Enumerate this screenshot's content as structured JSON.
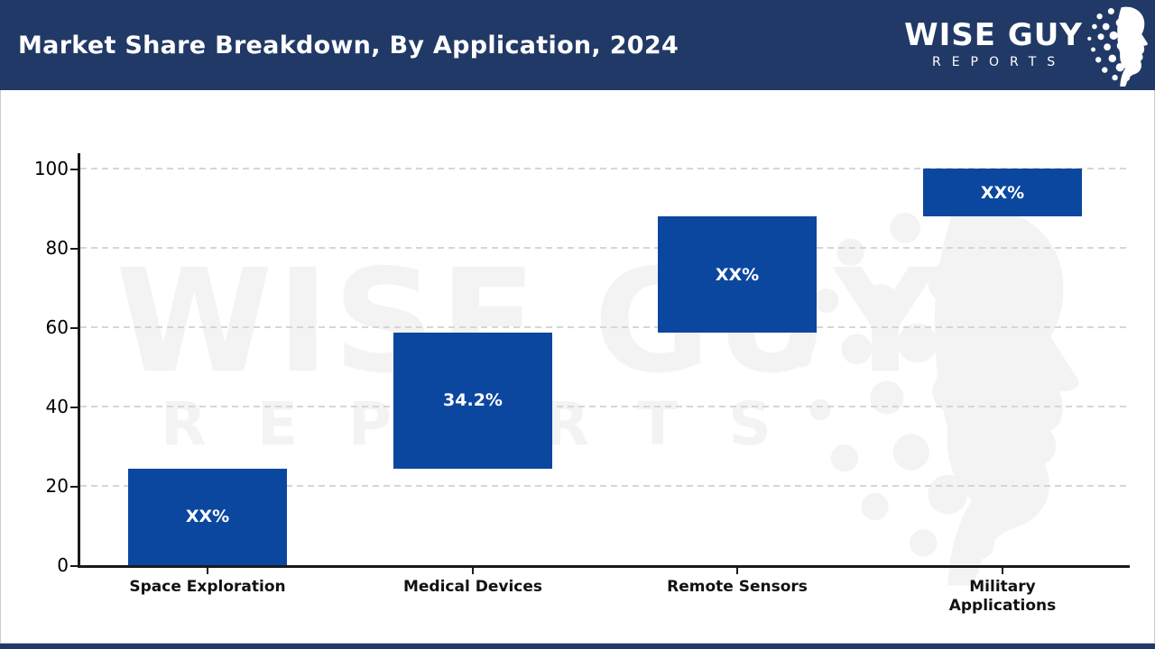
{
  "header": {
    "title": "Market Share Breakdown, By Application, 2024"
  },
  "logo": {
    "name": "WISE GUY",
    "subtitle": "REPORTS"
  },
  "watermark": {
    "word": "WISE GUY",
    "subtitle": "REPORTS"
  },
  "colors": {
    "header_bg": "#213966",
    "footer_bg": "#213966",
    "bar": "#0b479f",
    "bar_label": "#ffffff",
    "grid": "#d6d6d6",
    "axis": "#1a1a1a",
    "watermark": "#f3f3f3",
    "title_text": "#ffffff"
  },
  "chart_data": {
    "type": "bar",
    "subtype": "waterfall",
    "title": "Market Share Breakdown, By Application, 2024",
    "xlabel": "",
    "ylabel": "",
    "ylim": [
      0,
      100
    ],
    "yticks": [
      0,
      20,
      40,
      60,
      80,
      100
    ],
    "grid": "dashed-horizontal",
    "legend": "none",
    "categories": [
      "Space Exploration",
      "Medical Devices",
      "Remote Sensors",
      "Military\nApplications"
    ],
    "values": [
      24.4,
      34.2,
      29.3,
      12.1
    ],
    "bar_labels": [
      "XX%",
      "34.2%",
      "XX%",
      "XX%"
    ],
    "segments": [
      {
        "category": "Space Exploration",
        "start": 0,
        "end": 24.4,
        "label": "XX%"
      },
      {
        "category": "Medical Devices",
        "start": 24.4,
        "end": 58.6,
        "label": "34.2%"
      },
      {
        "category": "Remote Sensors",
        "start": 58.6,
        "end": 87.9,
        "label": "XX%"
      },
      {
        "category": "Military Applications",
        "start": 87.9,
        "end": 100,
        "label": "XX%"
      }
    ]
  }
}
